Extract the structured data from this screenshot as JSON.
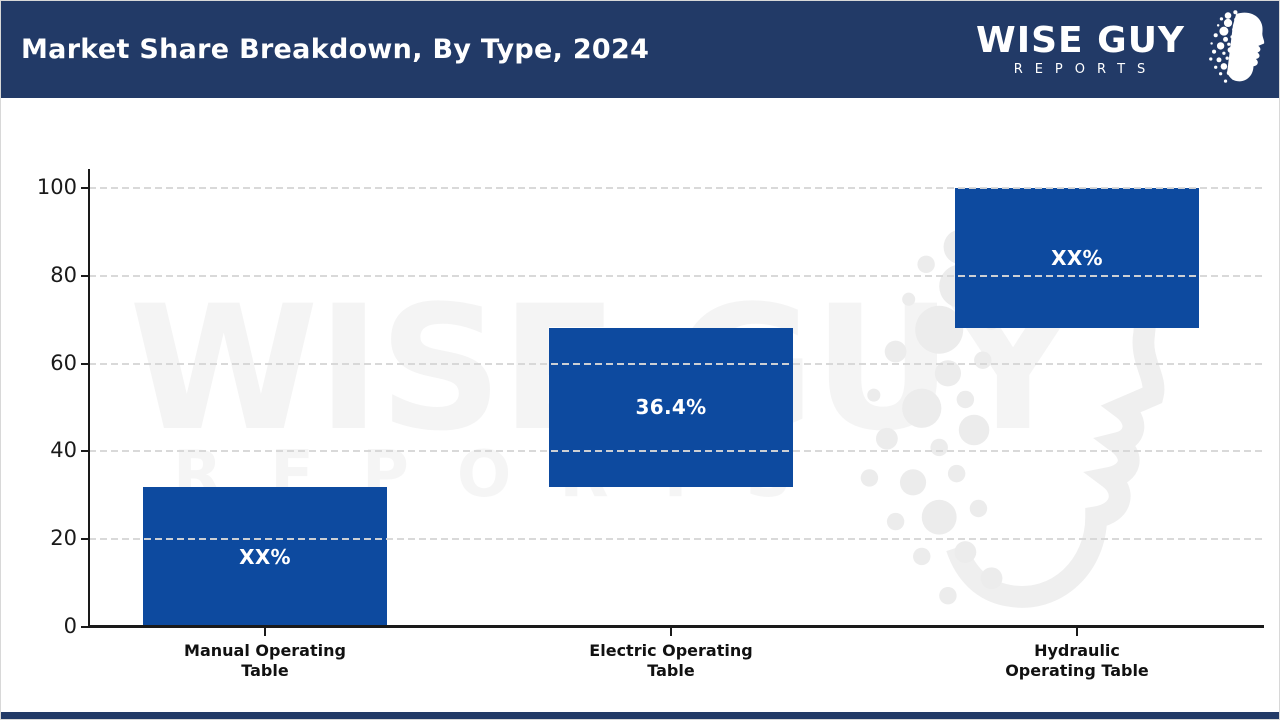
{
  "header": {
    "title": "Market Share Breakdown, By Type, 2024",
    "logo_line1": "WISE GUY",
    "logo_line2": "REPORTS"
  },
  "watermark": {
    "line1": "WISE GUY",
    "line2": "REPORTS"
  },
  "colors": {
    "header_bg": "#223a67",
    "footer_bg": "#223a67",
    "bar_color": "#0d4a9f",
    "value_label_color": "#ffffff",
    "gridline_color": "#d7d7d7",
    "axis_color": "#1a1a1a"
  },
  "chart_data": {
    "type": "bar",
    "variant": "floating_segment_bars",
    "title": "Market Share Breakdown, By Type, 2024",
    "xlabel": "",
    "ylabel": "",
    "ylim": [
      0,
      100
    ],
    "yticks": [
      0,
      20,
      40,
      60,
      80,
      100
    ],
    "grid": "horizontal_dashed",
    "legend": "none",
    "bar_color": "#0d4a9f",
    "categories": [
      "Manual Operating Table",
      "Electric Operating Table",
      "Hydraulic Operating Table"
    ],
    "bars": [
      {
        "category": "Manual Operating Table",
        "label_lines": [
          "Manual Operating",
          "Table"
        ],
        "start": 0,
        "end": 31.8,
        "value": 31.8,
        "value_label": "XX%"
      },
      {
        "category": "Electric Operating Table",
        "label_lines": [
          "Electric Operating",
          "Table"
        ],
        "start": 31.8,
        "end": 68.2,
        "value": 36.4,
        "value_label": "36.4%"
      },
      {
        "category": "Hydraulic Operating Table",
        "label_lines": [
          "Hydraulic",
          "Operating Table"
        ],
        "start": 68.2,
        "end": 100,
        "value": 31.8,
        "value_label": "XX%"
      }
    ]
  }
}
